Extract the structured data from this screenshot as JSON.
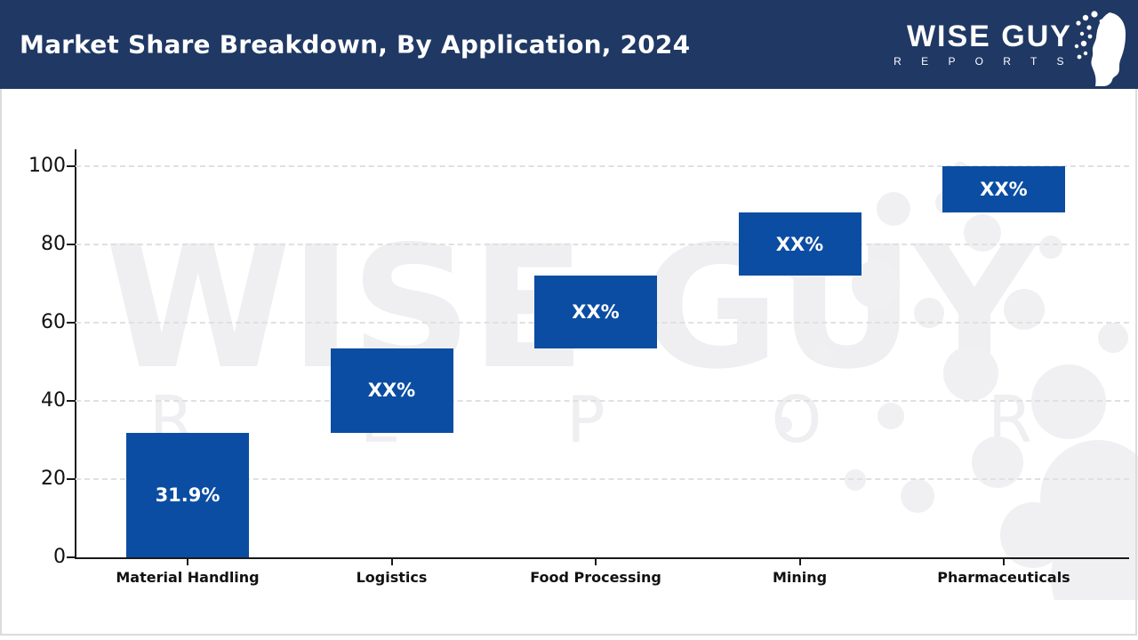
{
  "header": {
    "title": "Market Share Breakdown, By Application, 2024",
    "bg_color": "#1f3864",
    "logo": {
      "line1": "WISE GUY",
      "line2": "R E P O R T S"
    }
  },
  "watermark": {
    "line1": "WISE GUY",
    "line2": "R E P O R T S"
  },
  "chart_data": {
    "type": "bar",
    "subtype": "waterfall",
    "title": "Market Share Breakdown, By Application, 2024",
    "categories": [
      "Material Handling",
      "Logistics",
      "Food Processing",
      "Mining",
      "Pharmaceuticals"
    ],
    "segments": [
      {
        "category": "Material Handling",
        "start": 0,
        "end": 31.9,
        "label": "31.9%"
      },
      {
        "category": "Logistics",
        "start": 31.9,
        "end": 53.4,
        "label": "XX%"
      },
      {
        "category": "Food Processing",
        "start": 53.4,
        "end": 72.0,
        "label": "XX%"
      },
      {
        "category": "Mining",
        "start": 72.0,
        "end": 88.2,
        "label": "XX%"
      },
      {
        "category": "Pharmaceuticals",
        "start": 88.2,
        "end": 100.0,
        "label": "XX%"
      }
    ],
    "xlabel": "",
    "ylabel": "",
    "ylim": [
      0,
      105
    ],
    "yticks": [
      0,
      20,
      40,
      60,
      80,
      100
    ],
    "grid": "horizontal-dashed",
    "legend": "none",
    "bar_color": "#0b4da2",
    "bar_label_color": "#ffffff",
    "axis_color": "#1a1a1a"
  }
}
